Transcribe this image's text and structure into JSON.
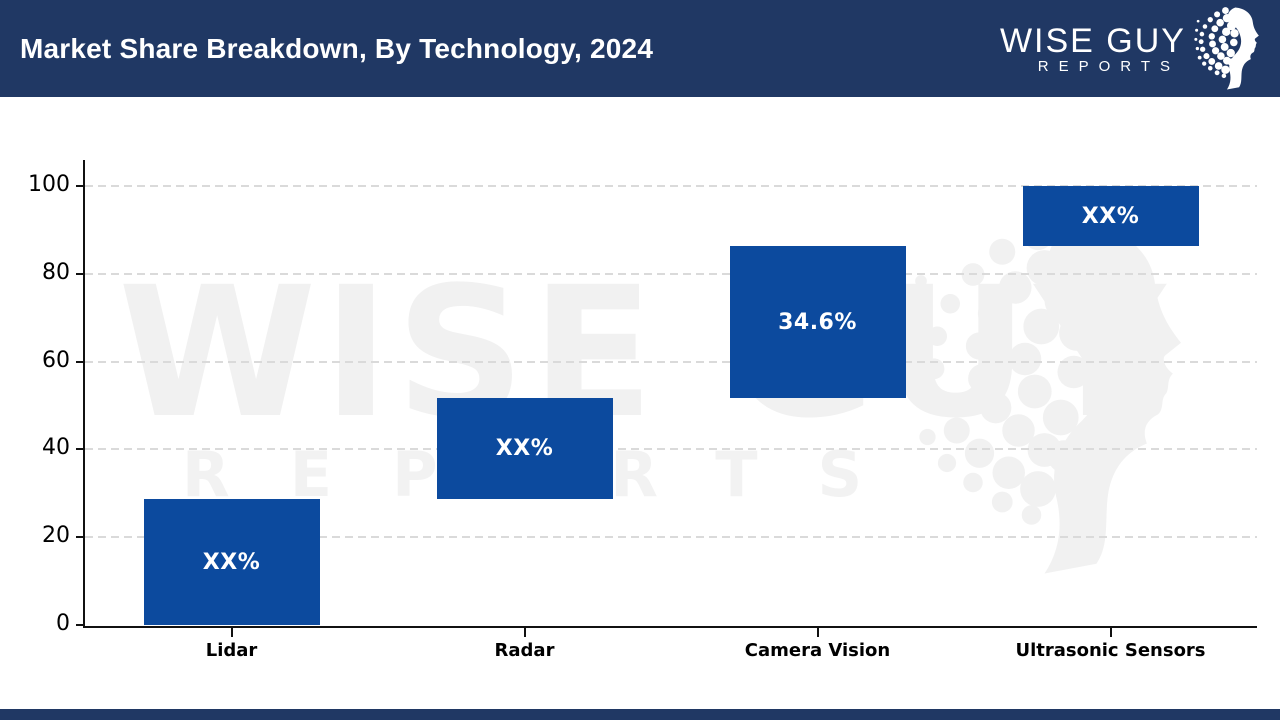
{
  "header": {
    "title": "Market Share Breakdown, By Technology, 2024",
    "logo": {
      "wordmark": "WISE GUY",
      "subtext": "REPORTS"
    }
  },
  "watermark": {
    "wordmark": "WISE GUY",
    "subtext": "REPORTS"
  },
  "chart_data": {
    "type": "bar",
    "subtype": "waterfall-floating-bars",
    "title": "Market Share Breakdown, By Technology, 2024",
    "categories": [
      "Lidar",
      "Radar",
      "Camera Vision",
      "Ultrasonic Sensors"
    ],
    "series": [
      {
        "name": "Market share segment",
        "segments": [
          {
            "category": "Lidar",
            "start": 0,
            "end": 28.6,
            "value_label": "XX%"
          },
          {
            "category": "Radar",
            "start": 28.6,
            "end": 51.7,
            "value_label": "XX%"
          },
          {
            "category": "Camera Vision",
            "start": 51.7,
            "end": 86.3,
            "value_label": "34.6%"
          },
          {
            "category": "Ultrasonic Sensors",
            "start": 86.3,
            "end": 100,
            "value_label": "XX%"
          }
        ]
      }
    ],
    "xlabel": "",
    "ylabel": "",
    "yticks": [
      0,
      20,
      40,
      60,
      80,
      100
    ],
    "ylim": [
      0,
      106
    ],
    "grid": "horizontal dashed",
    "legend": "none",
    "bar_color": "#0c4a9e",
    "value_label_color": "#ffffff"
  },
  "colors": {
    "header_bg": "#203864",
    "footer_bg": "#203864",
    "bar": "#0c4a9e",
    "grid": "#dadada",
    "axis": "#111111",
    "watermark": "#f1f1f1",
    "canvas_bg": "#ffffff"
  }
}
